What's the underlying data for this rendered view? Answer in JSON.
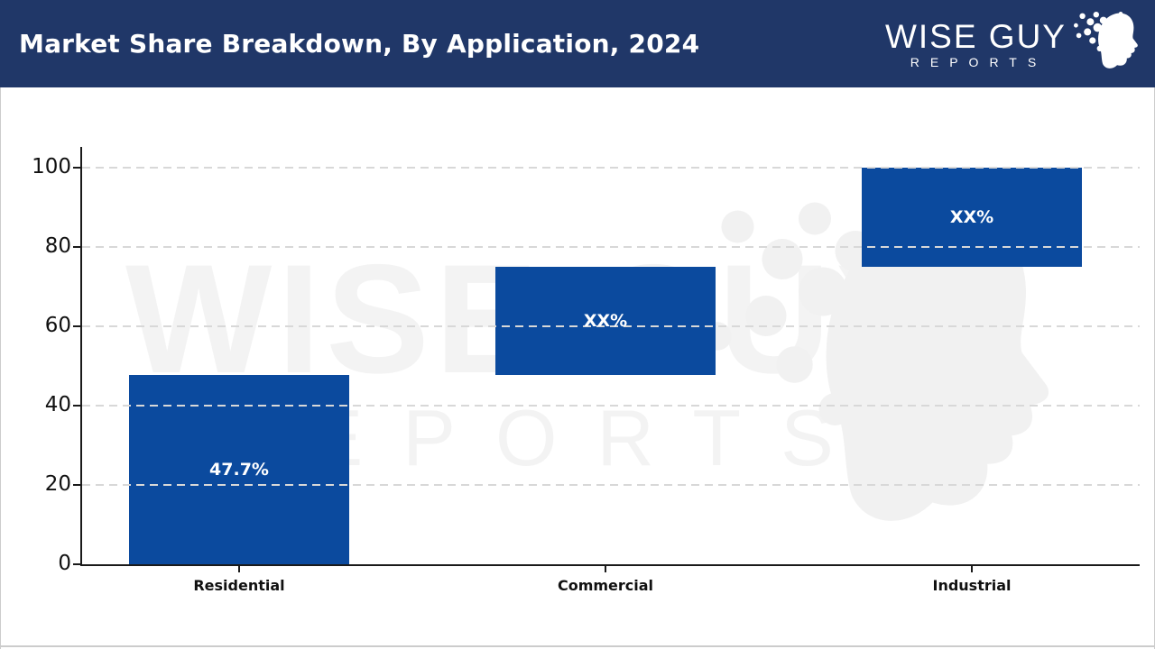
{
  "header": {
    "title": "Market Share Breakdown, By Application, 2024",
    "logo": {
      "name": "WISE GUY",
      "sub": "REPORTS"
    }
  },
  "watermark": {
    "line1": "WISE GUY",
    "line2": "REPORTS"
  },
  "chart_data": {
    "type": "bar",
    "subtype": "stacked-waterfall-percentage",
    "title": "Market Share Breakdown, By Application, 2024",
    "categories": [
      "Residential",
      "Commercial",
      "Industrial"
    ],
    "series": [
      {
        "name": "Residential",
        "start": 0,
        "end": 47.7,
        "label": "47.7%"
      },
      {
        "name": "Commercial",
        "start": 47.7,
        "end": 75,
        "label": "XX%"
      },
      {
        "name": "Industrial",
        "start": 75,
        "end": 100,
        "label": "XX%"
      }
    ],
    "ylim": [
      0,
      100
    ],
    "yticks": [
      0,
      20,
      40,
      60,
      80,
      100
    ],
    "xlabel": "",
    "ylabel": "",
    "grid": true,
    "legend": false,
    "bar_color": "#0b4a9e",
    "grid_color": "#d8d8d8",
    "axis_color": "#1a1a1a"
  },
  "colors": {
    "header_bg": "#203768",
    "bar": "#0b4a9e",
    "watermark": "#f3f3f3",
    "border": "#cccccc"
  }
}
